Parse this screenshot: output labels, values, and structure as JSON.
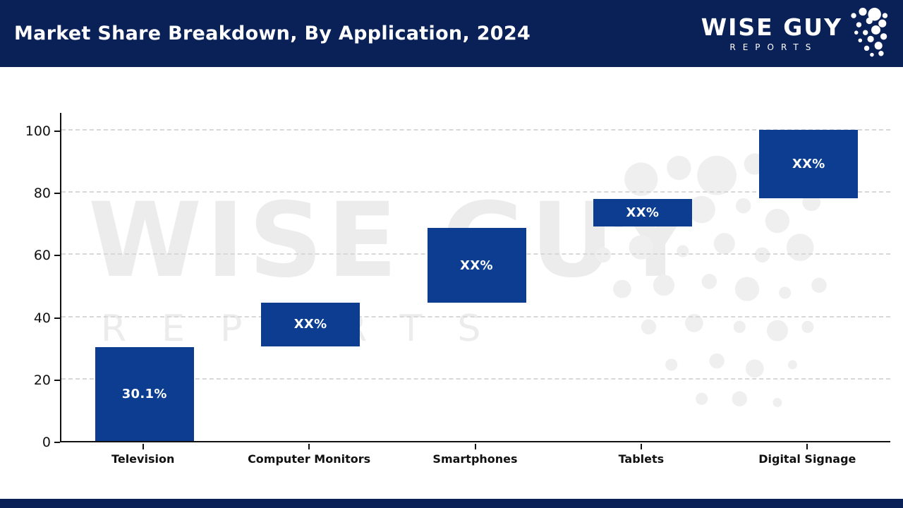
{
  "header": {
    "title": "Market Share Breakdown, By Application, 2024",
    "logo": {
      "line1": "WISE GUY",
      "line2": "REPORTS"
    }
  },
  "watermark": {
    "line1": "WISE GUY",
    "line2": "REPORTS"
  },
  "colors": {
    "header_bg": "#0a2158",
    "footer_bg": "#0a2158",
    "bar": "#0d3d91",
    "grid": "#d8d8d8",
    "axis": "#111111",
    "bar_label_text": "#ffffff",
    "watermark": "#ececec",
    "title_text": "#ffffff"
  },
  "chart_data": {
    "type": "bar",
    "subtype": "waterfall",
    "title": "Market Share Breakdown, By Application, 2024",
    "categories": [
      "Television",
      "Computer Monitors",
      "Smartphones",
      "Tablets",
      "Digital Signage"
    ],
    "segments": [
      {
        "category": "Television",
        "start": 0,
        "end": 30.1,
        "label": "30.1%"
      },
      {
        "category": "Computer Monitors",
        "start": 30.5,
        "end": 44.4,
        "label": "XX%"
      },
      {
        "category": "Smartphones",
        "start": 44.4,
        "end": 68.5,
        "label": "XX%"
      },
      {
        "category": "Tablets",
        "start": 69,
        "end": 77.8,
        "label": "XX%"
      },
      {
        "category": "Digital Signage",
        "start": 78,
        "end": 100,
        "label": "XX%"
      }
    ],
    "bar_value_labels": [
      "30.1%",
      "XX%",
      "XX%",
      "XX%",
      "XX%"
    ],
    "xlabel": "",
    "ylabel": "",
    "ylim": [
      0,
      105
    ],
    "yticks": [
      0,
      20,
      40,
      60,
      80,
      100
    ],
    "grid": true,
    "grid_style": "dashed",
    "legend": false
  }
}
